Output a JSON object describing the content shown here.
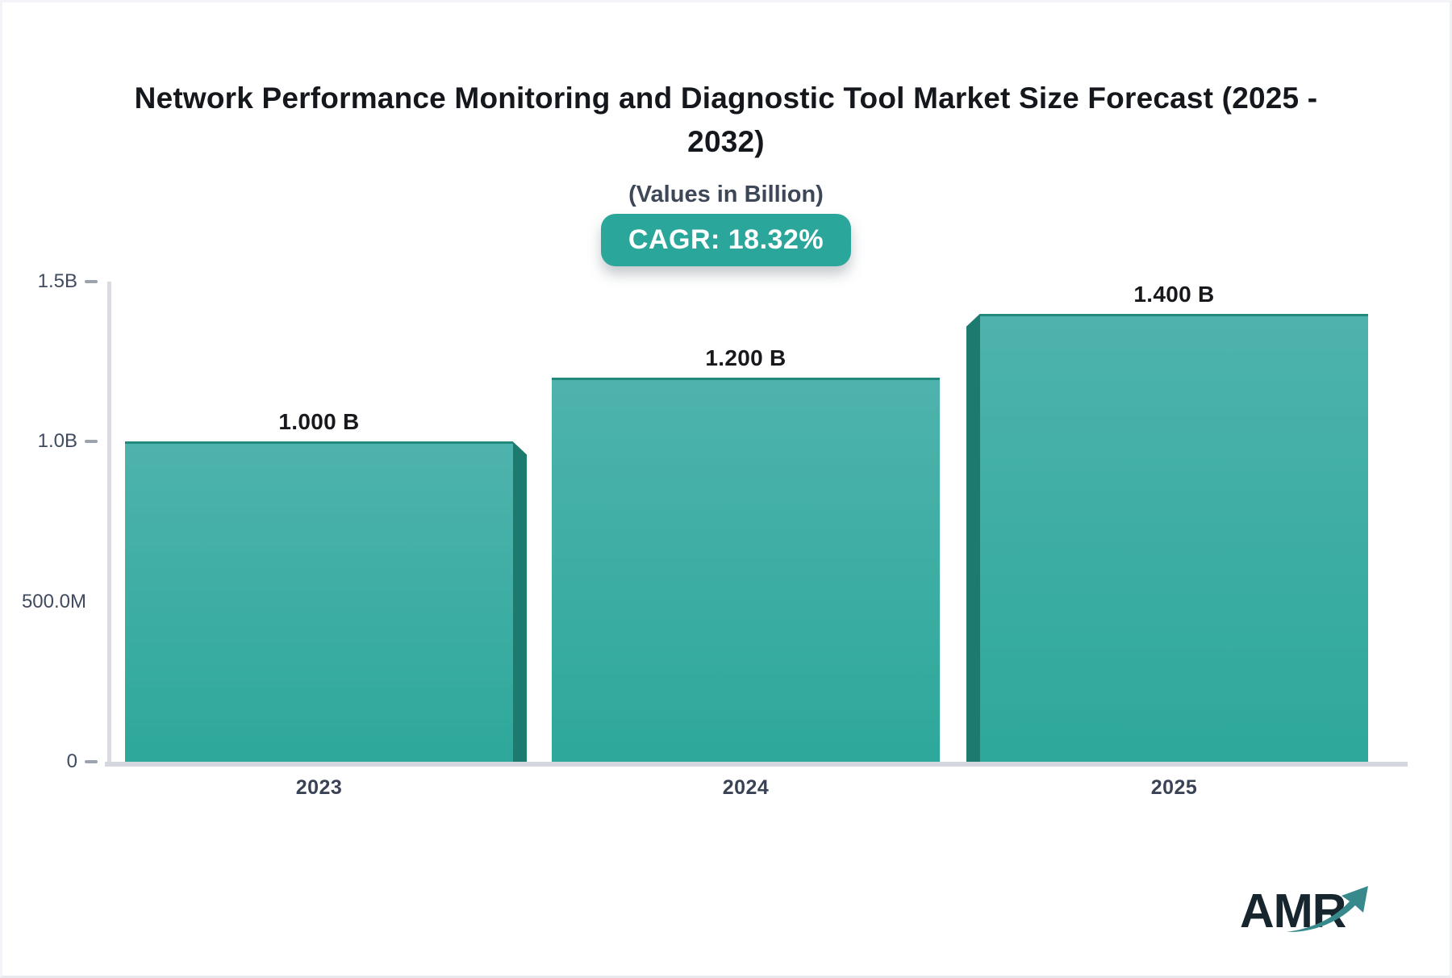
{
  "header": {
    "title_lines": [
      "Network Performance Monitoring and Diagnostic Tool Market Size Forecast (2025 -",
      "2032)"
    ],
    "subtitle": "(Values in Billion)",
    "cagr_label": "CAGR: 18.32%"
  },
  "chart_data": {
    "type": "bar",
    "title": "Network Performance Monitoring and Diagnostic Tool Market Size Forecast (2025 - 2032)",
    "subtitle": "(Values in Billion)",
    "cagr_percent": 18.32,
    "categories": [
      "2023",
      "2024",
      "2025"
    ],
    "values_billion": [
      1.0,
      1.2,
      1.4
    ],
    "bar_labels": [
      "1.000 B",
      "1.200 B",
      "1.400 B"
    ],
    "xlabel": "",
    "ylabel": "",
    "ylim_billion": [
      0,
      1.5
    ],
    "yticks": [
      {
        "label": "0",
        "value": 0,
        "dash": true
      },
      {
        "label": "500.0M",
        "value": 0.5,
        "dash": false
      },
      {
        "label": "1.0B",
        "value": 1.0,
        "dash": true
      },
      {
        "label": "1.5B",
        "value": 1.5,
        "dash": true
      }
    ],
    "legend_position": "none",
    "grid": "off"
  },
  "colors": {
    "bar_top": "#4eb3ac",
    "bar_bottom": "#2da89a",
    "bar_edge": "#22897c",
    "bar_side_3d": "#1d7a6f",
    "badge_background": "#2aa69a",
    "badge_text": "#ffffff",
    "axis_line": "#d7d9e0",
    "tick_text": "#414b5f",
    "title_text": "#14171c",
    "logo_text": "#16252e",
    "logo_arrow": "#38898c"
  },
  "logo": {
    "text": "AMR"
  }
}
